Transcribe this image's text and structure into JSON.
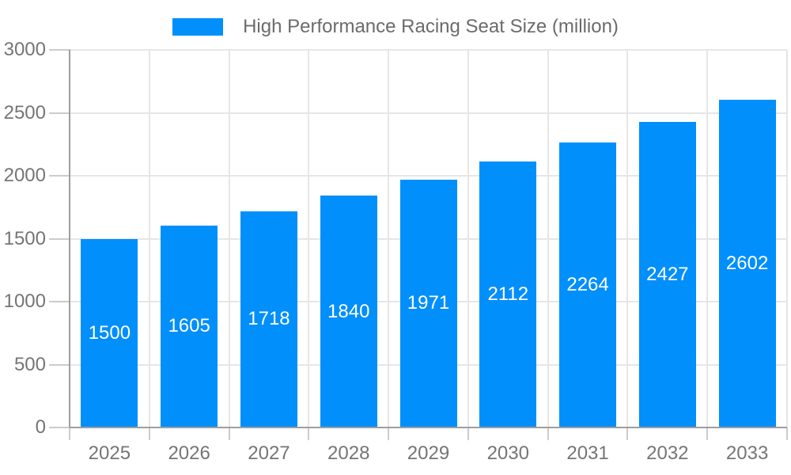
{
  "chart_data": {
    "type": "bar",
    "title": "High Performance Racing Seat Size (million)",
    "series_name": "High Performance Racing Seat Size (million)",
    "categories": [
      "2025",
      "2026",
      "2027",
      "2028",
      "2029",
      "2030",
      "2031",
      "2032",
      "2033"
    ],
    "values": [
      1500,
      1605,
      1718,
      1840,
      1971,
      2112,
      2264,
      2427,
      2602
    ],
    "xlabel": "",
    "ylabel": "",
    "ylim": [
      0,
      3000
    ],
    "y_ticks": [
      0,
      500,
      1000,
      1500,
      2000,
      2500,
      3000
    ],
    "grid": true,
    "legend_position": "top",
    "bar_color": "#008FFB",
    "value_label_color": "#FFFFFF"
  },
  "colors": {
    "background": "#FFFFFF",
    "axis_line": "#9E9E9E",
    "gridline": "#E6E6E6",
    "tick": "#CCCCCC",
    "axis_text": "#757575",
    "legend_text": "#6B6B6B"
  }
}
